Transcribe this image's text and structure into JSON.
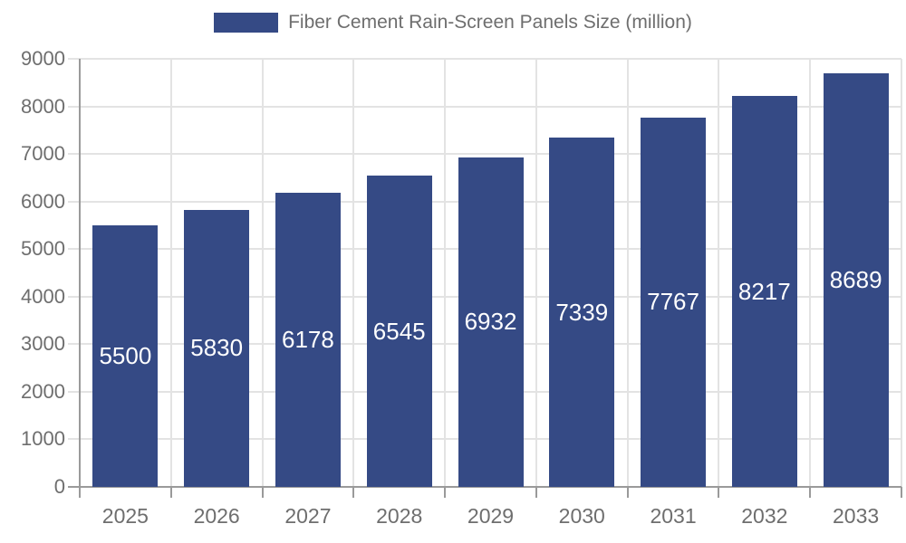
{
  "chart_data": {
    "type": "bar",
    "title": "Fiber Cement Rain-Screen Panels Size (million)",
    "categories": [
      "2025",
      "2026",
      "2027",
      "2028",
      "2029",
      "2030",
      "2031",
      "2032",
      "2033"
    ],
    "values": [
      5500,
      5830,
      6178,
      6545,
      6932,
      7339,
      7767,
      8217,
      8689
    ],
    "xlabel": "",
    "ylabel": "",
    "ylim": [
      0,
      9000
    ],
    "ytick_step": 1000,
    "ytick_labels": [
      "0",
      "1000",
      "2000",
      "3000",
      "4000",
      "5000",
      "6000",
      "7000",
      "8000",
      "9000"
    ],
    "grid": "both",
    "legend_position": "top-center",
    "bar_value_labels": "inside-center",
    "colors": {
      "bar": "#354a85",
      "bar_label": "#ffffff",
      "axis_text": "#6e6e6e",
      "gridline": "#e3e3e3",
      "axis_line": "#9a9a9a",
      "background": "#ffffff"
    }
  }
}
